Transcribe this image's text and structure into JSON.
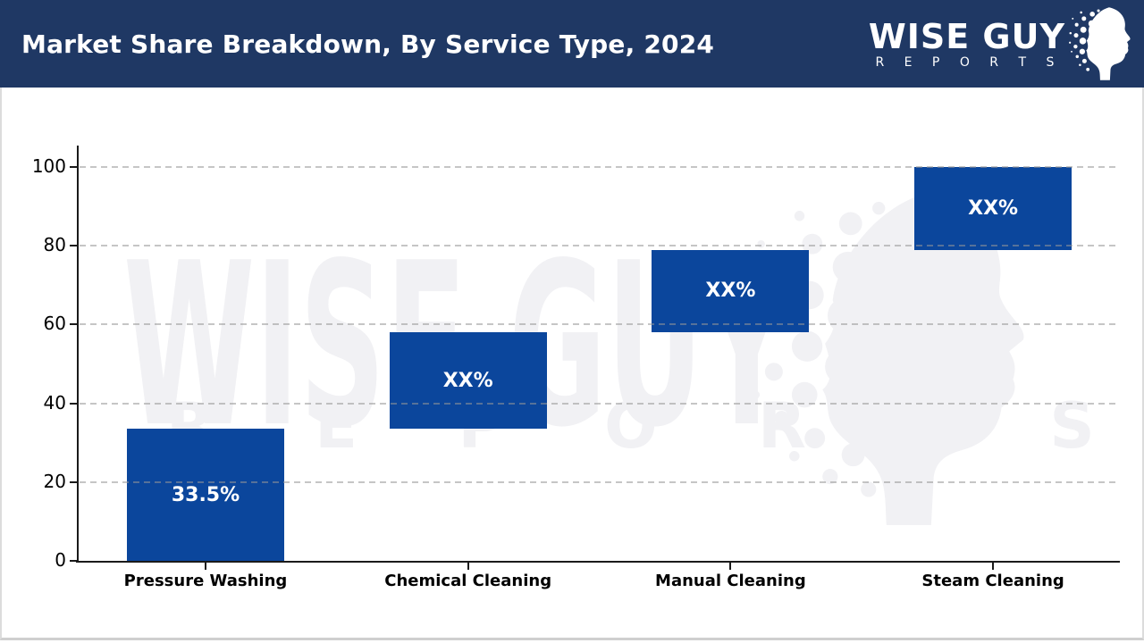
{
  "header": {
    "title": "Market Share Breakdown, By Service Type, 2024",
    "logo": {
      "name": "WISE GUY",
      "subtitle": "R E P O R T S"
    }
  },
  "watermark": {
    "line1": "WISE GUY",
    "line2": "R E P O R T S"
  },
  "colors": {
    "header_bg": "#1f3864",
    "bar_fill": "#0b469c",
    "bar_label": "#ffffff",
    "axis": "#1a1a1a",
    "gridline": "#d4d4d4",
    "watermark": "#f1f1f4"
  },
  "chart_data": {
    "type": "bar",
    "variant": "waterfall",
    "title": "Market Share Breakdown, By Service Type, 2024",
    "categories": [
      "Pressure Washing",
      "Chemical Cleaning",
      "Manual Cleaning",
      "Steam Cleaning"
    ],
    "segments": [
      {
        "category": "Pressure Washing",
        "start": 0,
        "end": 33.5,
        "label": "33.5%"
      },
      {
        "category": "Chemical Cleaning",
        "start": 33.5,
        "end": 58,
        "label": "XX%"
      },
      {
        "category": "Manual Cleaning",
        "start": 58,
        "end": 79,
        "label": "XX%"
      },
      {
        "category": "Steam Cleaning",
        "start": 79,
        "end": 100,
        "label": "XX%"
      }
    ],
    "xlabel": "",
    "ylabel": "",
    "ylim": [
      0,
      100
    ],
    "yticks": [
      0,
      20,
      40,
      60,
      80,
      100
    ],
    "grid": "horizontal-dashed",
    "legend": "none",
    "bar_labels_inside": true
  }
}
